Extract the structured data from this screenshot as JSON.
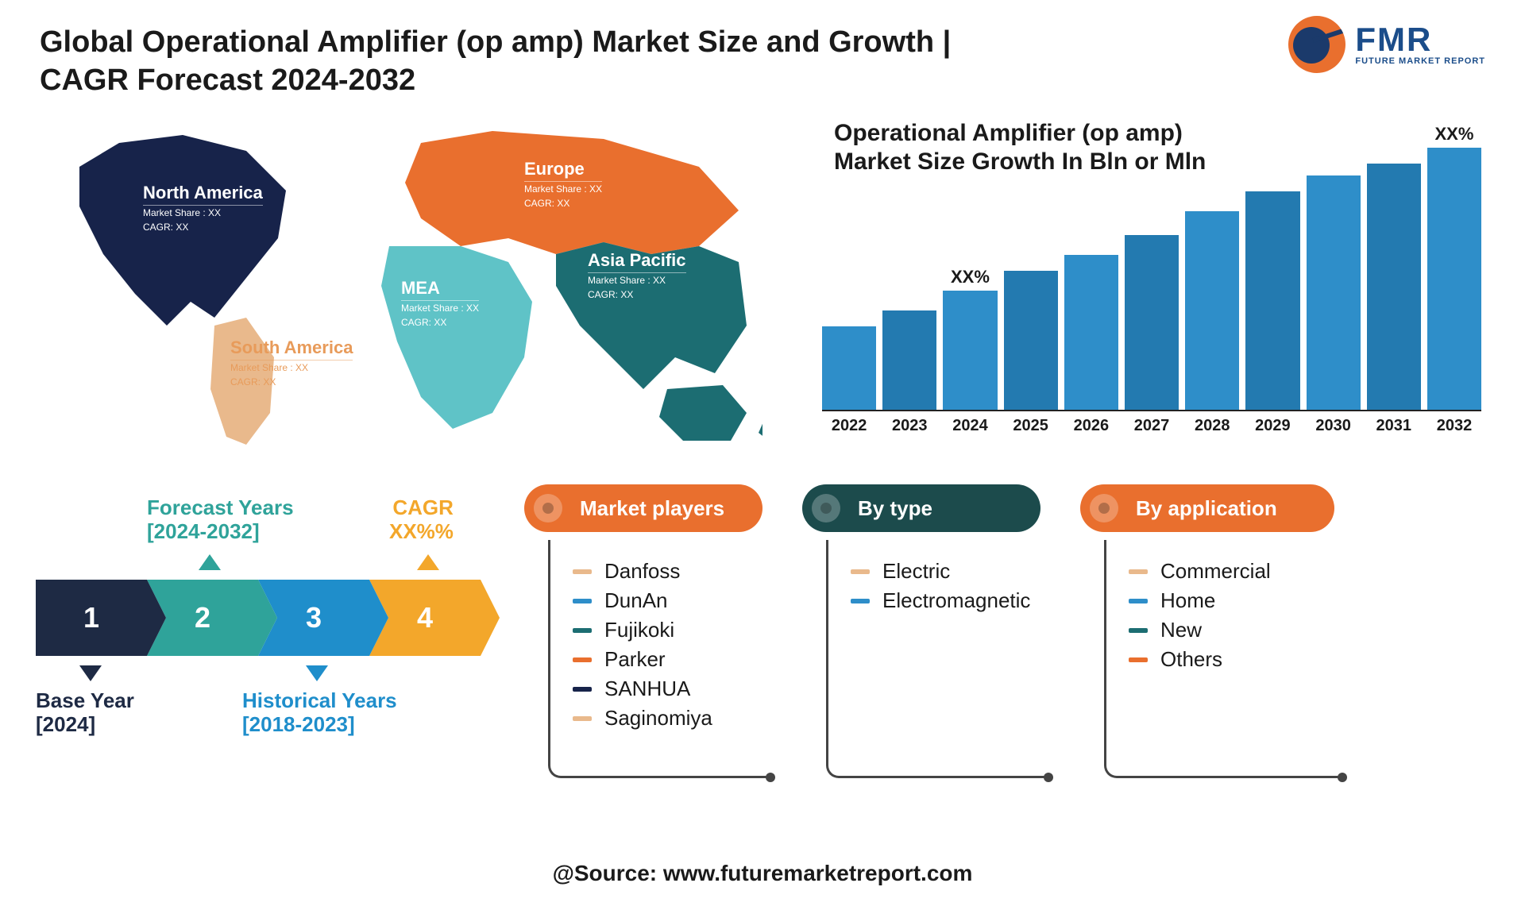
{
  "title": "Global Operational Amplifier (op amp) Market Size and Growth | CAGR Forecast 2024-2032",
  "logo": {
    "fmr": "FMR",
    "sub": "FUTURE MARKET REPORT"
  },
  "map": {
    "regions": [
      {
        "key": "na",
        "name": "North America",
        "share": "Market Share : XX",
        "cagr": "CAGR: XX",
        "color": "#17234a"
      },
      {
        "key": "sa",
        "name": "South America",
        "share": "Market Share : XX",
        "cagr": "CAGR: XX",
        "color": "#e9b98c"
      },
      {
        "key": "eu",
        "name": "Europe",
        "share": "Market Share : XX",
        "cagr": "CAGR: XX",
        "color": "#e96f2e"
      },
      {
        "key": "mea",
        "name": "MEA",
        "share": "Market Share : XX",
        "cagr": "CAGR: XX",
        "color": "#5fc3c7"
      },
      {
        "key": "ap",
        "name": "Asia Pacific",
        "share": "Market Share : XX",
        "cagr": "CAGR: XX",
        "color": "#1c6d72"
      }
    ]
  },
  "chart": {
    "title": "Operational Amplifier (op amp) Market Size Growth In Bln or Mln",
    "years": [
      "2022",
      "2023",
      "2024",
      "2025",
      "2026",
      "2027",
      "2028",
      "2029",
      "2030",
      "2031",
      "2032"
    ],
    "values": [
      105,
      125,
      150,
      175,
      195,
      220,
      250,
      275,
      295,
      310,
      330
    ],
    "max": 340,
    "colors": [
      "#2e8ec9",
      "#237ab0",
      "#2e8ec9",
      "#237ab0",
      "#2e8ec9",
      "#237ab0",
      "#2e8ec9",
      "#237ab0",
      "#2e8ec9",
      "#237ab0",
      "#2e8ec9"
    ],
    "first_pct_label": "XX%",
    "first_pct_index": 2,
    "last_pct_label": "XX%",
    "last_pct_index": 10
  },
  "timeline": {
    "items": [
      {
        "n": "1",
        "bg": "#1e2a44"
      },
      {
        "n": "2",
        "bg": "#2fa39a"
      },
      {
        "n": "3",
        "bg": "#1f8ecb"
      },
      {
        "n": "4",
        "bg": "#f3a72b"
      }
    ],
    "labels": {
      "forecast_title": "Forecast Years",
      "forecast_range": "[2024-2032]",
      "forecast_color": "#2fa39a",
      "cagr_title": "CAGR",
      "cagr_value": "XX%%",
      "cagr_color": "#f3a72b",
      "base_title": "Base Year",
      "base_range": "[2024]",
      "base_color": "#1e2a44",
      "hist_title": "Historical Years",
      "hist_range": "[2018-2023]",
      "hist_color": "#1f8ecb"
    }
  },
  "sections": {
    "players": {
      "pill_label": "Market players",
      "pill_bg": "#e96f2e",
      "items": [
        {
          "label": "Danfoss",
          "c": "#e9b98c"
        },
        {
          "label": "DunAn",
          "c": "#2e8ec9"
        },
        {
          "label": "Fujikoki",
          "c": "#1c6d72"
        },
        {
          "label": "Parker",
          "c": "#e96f2e"
        },
        {
          "label": "SANHUA",
          "c": "#17234a"
        },
        {
          "label": "Saginomiya",
          "c": "#e9b98c"
        }
      ]
    },
    "type": {
      "pill_label": "By type",
      "pill_bg": "#1c4b4c",
      "items": [
        {
          "label": "Electric",
          "c": "#e9b98c"
        },
        {
          "label": "Electromagnetic",
          "c": "#2e8ec9"
        }
      ]
    },
    "application": {
      "pill_label": "By application",
      "pill_bg": "#e96f2e",
      "items": [
        {
          "label": "Commercial",
          "c": "#e9b98c"
        },
        {
          "label": "Home",
          "c": "#2e8ec9"
        },
        {
          "label": "New",
          "c": "#1c6d72"
        },
        {
          "label": "Others",
          "c": "#e96f2e"
        }
      ]
    }
  },
  "source": "@Source: www.futuremarketreport.com"
}
